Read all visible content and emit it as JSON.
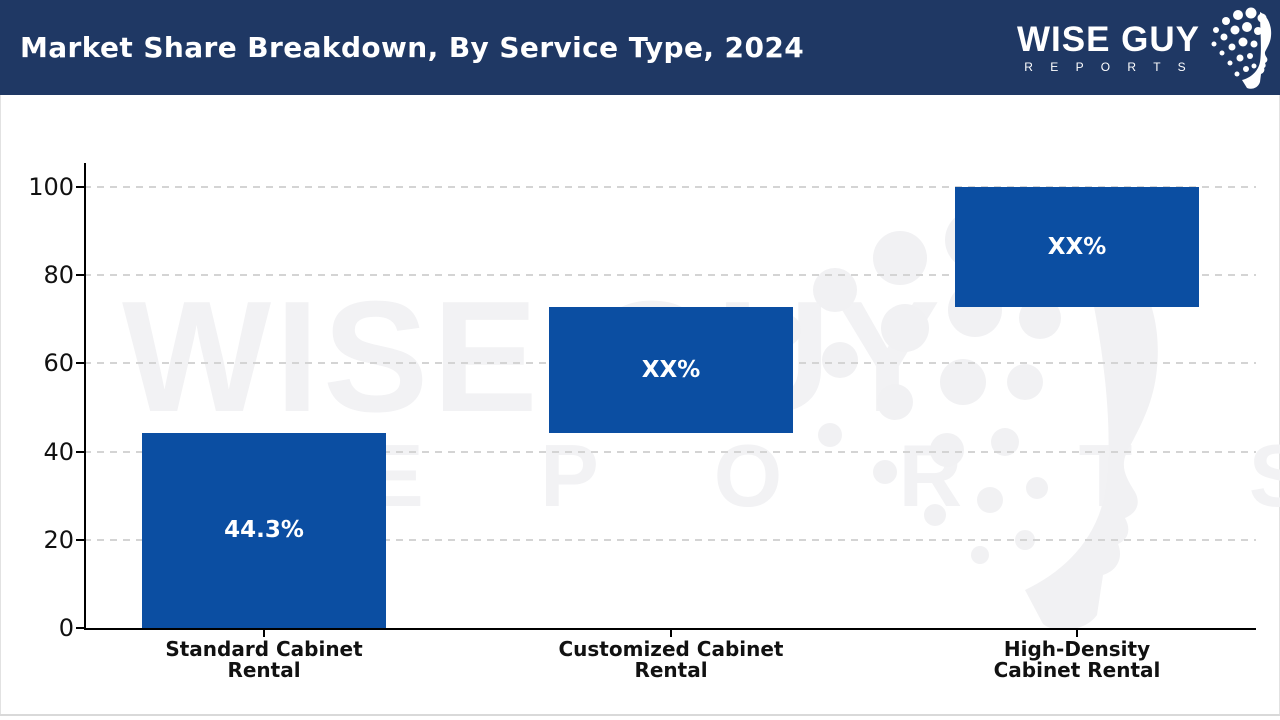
{
  "header": {
    "title": "Market Share Breakdown, By Service Type, 2024",
    "logo": {
      "brand": "WISE GUY",
      "sub": "R E P O R T S"
    }
  },
  "watermark": {
    "line1": "WISE GUY",
    "line2": "R E P O R T S"
  },
  "chart_data": {
    "type": "bar",
    "subtype": "waterfall",
    "title": "Market Share Breakdown, By Service Type, 2024",
    "categories": [
      "Standard Cabinet Rental",
      "Customized Cabinet Rental",
      "High-Density Cabinet Rental"
    ],
    "category_lines": [
      [
        "Standard Cabinet",
        "Rental"
      ],
      [
        "Customized Cabinet",
        "Rental"
      ],
      [
        "High-Density",
        "Cabinet Rental"
      ]
    ],
    "segments": [
      {
        "category": "Standard Cabinet Rental",
        "start": 0,
        "end": 44.3,
        "label": "44.3%"
      },
      {
        "category": "Customized Cabinet Rental",
        "start": 44.3,
        "end": 72.8,
        "label": "XX%"
      },
      {
        "category": "High-Density Cabinet Rental",
        "start": 72.8,
        "end": 100,
        "label": "XX%"
      }
    ],
    "ylim": [
      0,
      100
    ],
    "yticks": [
      0,
      20,
      40,
      60,
      80,
      100
    ],
    "xlabel": "",
    "ylabel": "",
    "grid": "horizontal-dashed",
    "legend": "none",
    "colors": {
      "bar": "#0b4ea2",
      "bar_label": "#ffffff",
      "grid": "#d4d4d4",
      "axis": "#000000",
      "header_bg": "#1f3864",
      "header_text": "#ffffff",
      "watermark": "#f2f2f4"
    }
  }
}
